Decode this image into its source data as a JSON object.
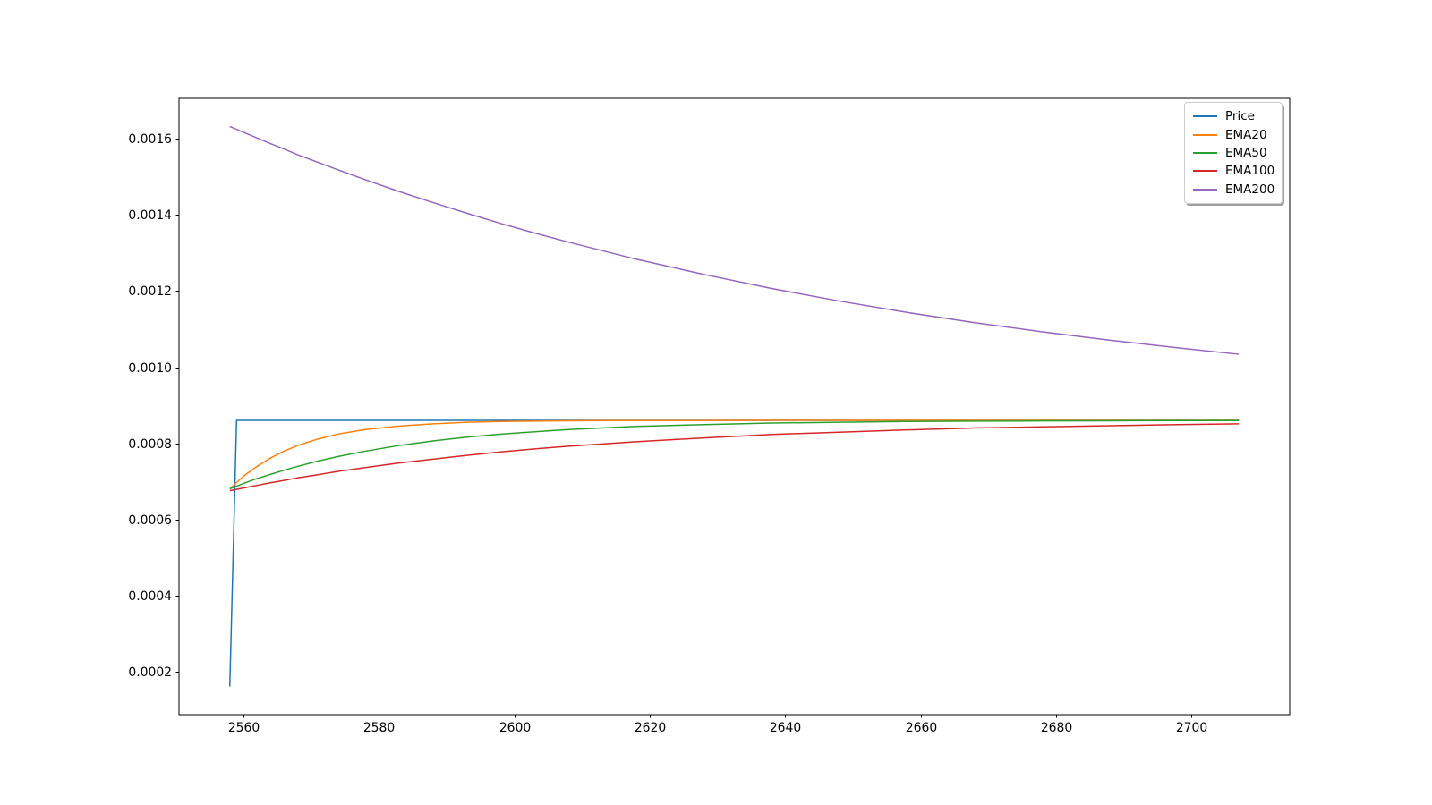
{
  "colors": {
    "background": "#ffffff",
    "spine": "#000000",
    "tick": "#000000",
    "tick_label": "#000000",
    "legend_border": "#cccccc"
  },
  "legend": {
    "position": "upper right"
  },
  "chart_data": {
    "type": "line",
    "title": "",
    "xlabel": "",
    "ylabel": "",
    "grid": false,
    "legend_position": "upper right",
    "xlim": [
      2550.5,
      2714.5
    ],
    "ylim": [
      8.6e-05,
      0.001707
    ],
    "xticks": [
      2560,
      2580,
      2600,
      2620,
      2640,
      2660,
      2680,
      2700
    ],
    "xtick_labels": [
      "2560",
      "2580",
      "2600",
      "2620",
      "2640",
      "2660",
      "2680",
      "2700"
    ],
    "yticks": [
      0.0002,
      0.0004,
      0.0006,
      0.0008,
      0.001,
      0.0012,
      0.0014,
      0.0016
    ],
    "ytick_labels": [
      "0.0002",
      "0.0004",
      "0.0006",
      "0.0008",
      "0.0010",
      "0.0012",
      "0.0014",
      "0.0016"
    ],
    "series": [
      {
        "name": "Price",
        "color": "#1f77b4",
        "x": [
          2558,
          2559,
          2608,
          2658,
          2707
        ],
        "y": [
          0.00016,
          0.00086,
          0.00086,
          0.00086,
          0.00086
        ]
      },
      {
        "name": "EMA20",
        "color": "#ff7f0e",
        "x": [
          2558,
          2560,
          2562,
          2564,
          2566,
          2568,
          2571,
          2574,
          2578,
          2583,
          2588,
          2593,
          2598,
          2603,
          2608,
          2618,
          2628,
          2638,
          2648,
          2658,
          2668,
          2678,
          2688,
          2698,
          2707
        ],
        "y": [
          0.00068,
          0.000713,
          0.000739,
          0.000761,
          0.000779,
          0.000794,
          0.000811,
          0.000824,
          0.000836,
          0.000845,
          0.000851,
          0.000855,
          0.000857,
          0.000858,
          0.000859,
          0.0008596,
          0.0008598,
          0.0008599,
          0.00086,
          0.00086,
          0.00086,
          0.00086,
          0.00086,
          0.00086,
          0.00086
        ]
      },
      {
        "name": "EMA50",
        "color": "#2ca02c",
        "x": [
          2558,
          2560,
          2562,
          2564,
          2566,
          2568,
          2571,
          2574,
          2578,
          2583,
          2588,
          2593,
          2598,
          2603,
          2608,
          2618,
          2628,
          2638,
          2648,
          2658,
          2668,
          2678,
          2688,
          2698,
          2707
        ],
        "y": [
          0.00068,
          0.000694,
          0.000707,
          0.000718,
          0.000729,
          0.000739,
          0.000753,
          0.000765,
          0.000779,
          0.000794,
          0.000806,
          0.000816,
          0.000824,
          0.00083,
          0.000836,
          0.000844,
          0.000849,
          0.000853,
          0.000855,
          0.000857,
          0.000858,
          0.0008585,
          0.000859,
          0.0008593,
          0.0008595
        ]
      },
      {
        "name": "EMA100",
        "color": "#d62728",
        "x": [
          2558,
          2560,
          2562,
          2564,
          2566,
          2568,
          2571,
          2574,
          2578,
          2583,
          2588,
          2593,
          2598,
          2603,
          2608,
          2618,
          2628,
          2638,
          2648,
          2658,
          2668,
          2678,
          2688,
          2698,
          2707
        ],
        "y": [
          0.000675,
          0.000682,
          0.000689,
          0.000696,
          0.000702,
          0.000709,
          0.000717,
          0.000726,
          0.000736,
          0.000748,
          0.000758,
          0.000768,
          0.000777,
          0.000785,
          0.000792,
          0.000804,
          0.000814,
          0.000823,
          0.000829,
          0.000835,
          0.00084,
          0.000843,
          0.000846,
          0.000849,
          0.000851
        ]
      },
      {
        "name": "EMA200",
        "color": "#9467bd",
        "x": [
          2558,
          2560,
          2562,
          2564,
          2566,
          2568,
          2571,
          2574,
          2578,
          2583,
          2588,
          2593,
          2598,
          2603,
          2608,
          2618,
          2628,
          2638,
          2648,
          2658,
          2668,
          2678,
          2688,
          2698,
          2707
        ],
        "y": [
          0.001633,
          0.001618,
          0.001603,
          0.001588,
          0.001574,
          0.001559,
          0.001539,
          0.001519,
          0.001493,
          0.001462,
          0.001433,
          0.001405,
          0.001378,
          0.001353,
          0.001329,
          0.001284,
          0.001244,
          0.001207,
          0.001174,
          0.001144,
          0.001117,
          0.001093,
          0.001071,
          0.001051,
          0.001034
        ]
      }
    ]
  }
}
